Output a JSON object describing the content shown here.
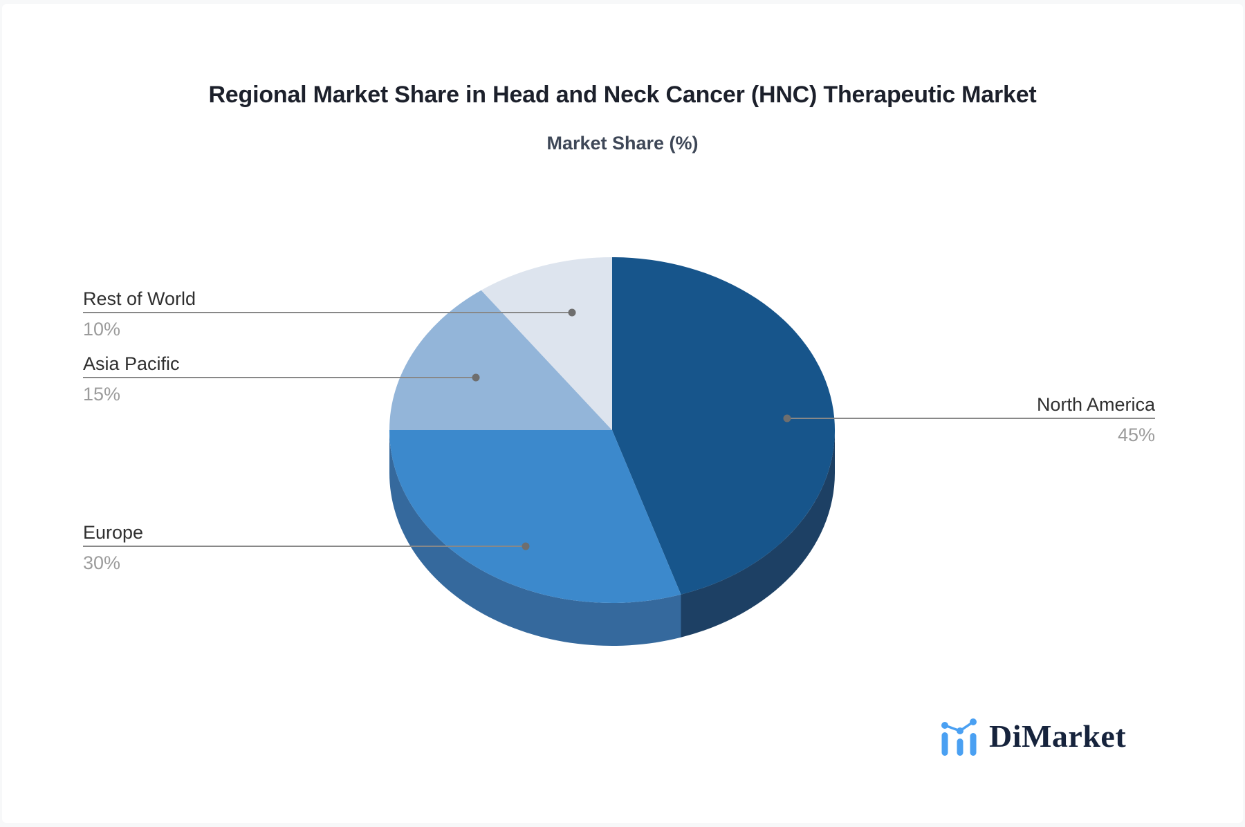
{
  "page": {
    "background_color": "#f7f8f9",
    "card_color": "#ffffff"
  },
  "header": {
    "title": "Regional Market Share in Head and Neck Cancer (HNC) Therapeutic Market",
    "subtitle": "Market Share (%)"
  },
  "chart_data": {
    "type": "pie",
    "style": "3d",
    "title": "Regional Market Share in Head and Neck Cancer (HNC) Therapeutic Market",
    "subtitle": "Market Share (%)",
    "unit": "%",
    "start_angle_deg": 0,
    "direction": "clockwise",
    "legend_position": "callout-labels",
    "segments": [
      {
        "label": "North America",
        "value": 45,
        "display": "45%",
        "color": "#17558b",
        "side_color": "#1d4064"
      },
      {
        "label": "Europe",
        "value": 30,
        "display": "30%",
        "color": "#3c89cc",
        "side_color": "#35699d"
      },
      {
        "label": "Asia Pacific",
        "value": 15,
        "display": "15%",
        "color": "#93b5d9",
        "side_color": null
      },
      {
        "label": "Rest of World",
        "value": 10,
        "display": "10%",
        "color": "#dde4ee",
        "side_color": null
      }
    ],
    "label_text_color": "#2f2f2f",
    "value_text_color": "#9b9b9b",
    "leader_line_color": "#888888",
    "leader_dot_color": "#6e6e6e"
  },
  "branding": {
    "logo_text": "DiMarket",
    "logo_text_color": "#16233c",
    "logo_icon": "bar-line-chart-icon",
    "logo_icon_color": "#4aa0f2"
  }
}
